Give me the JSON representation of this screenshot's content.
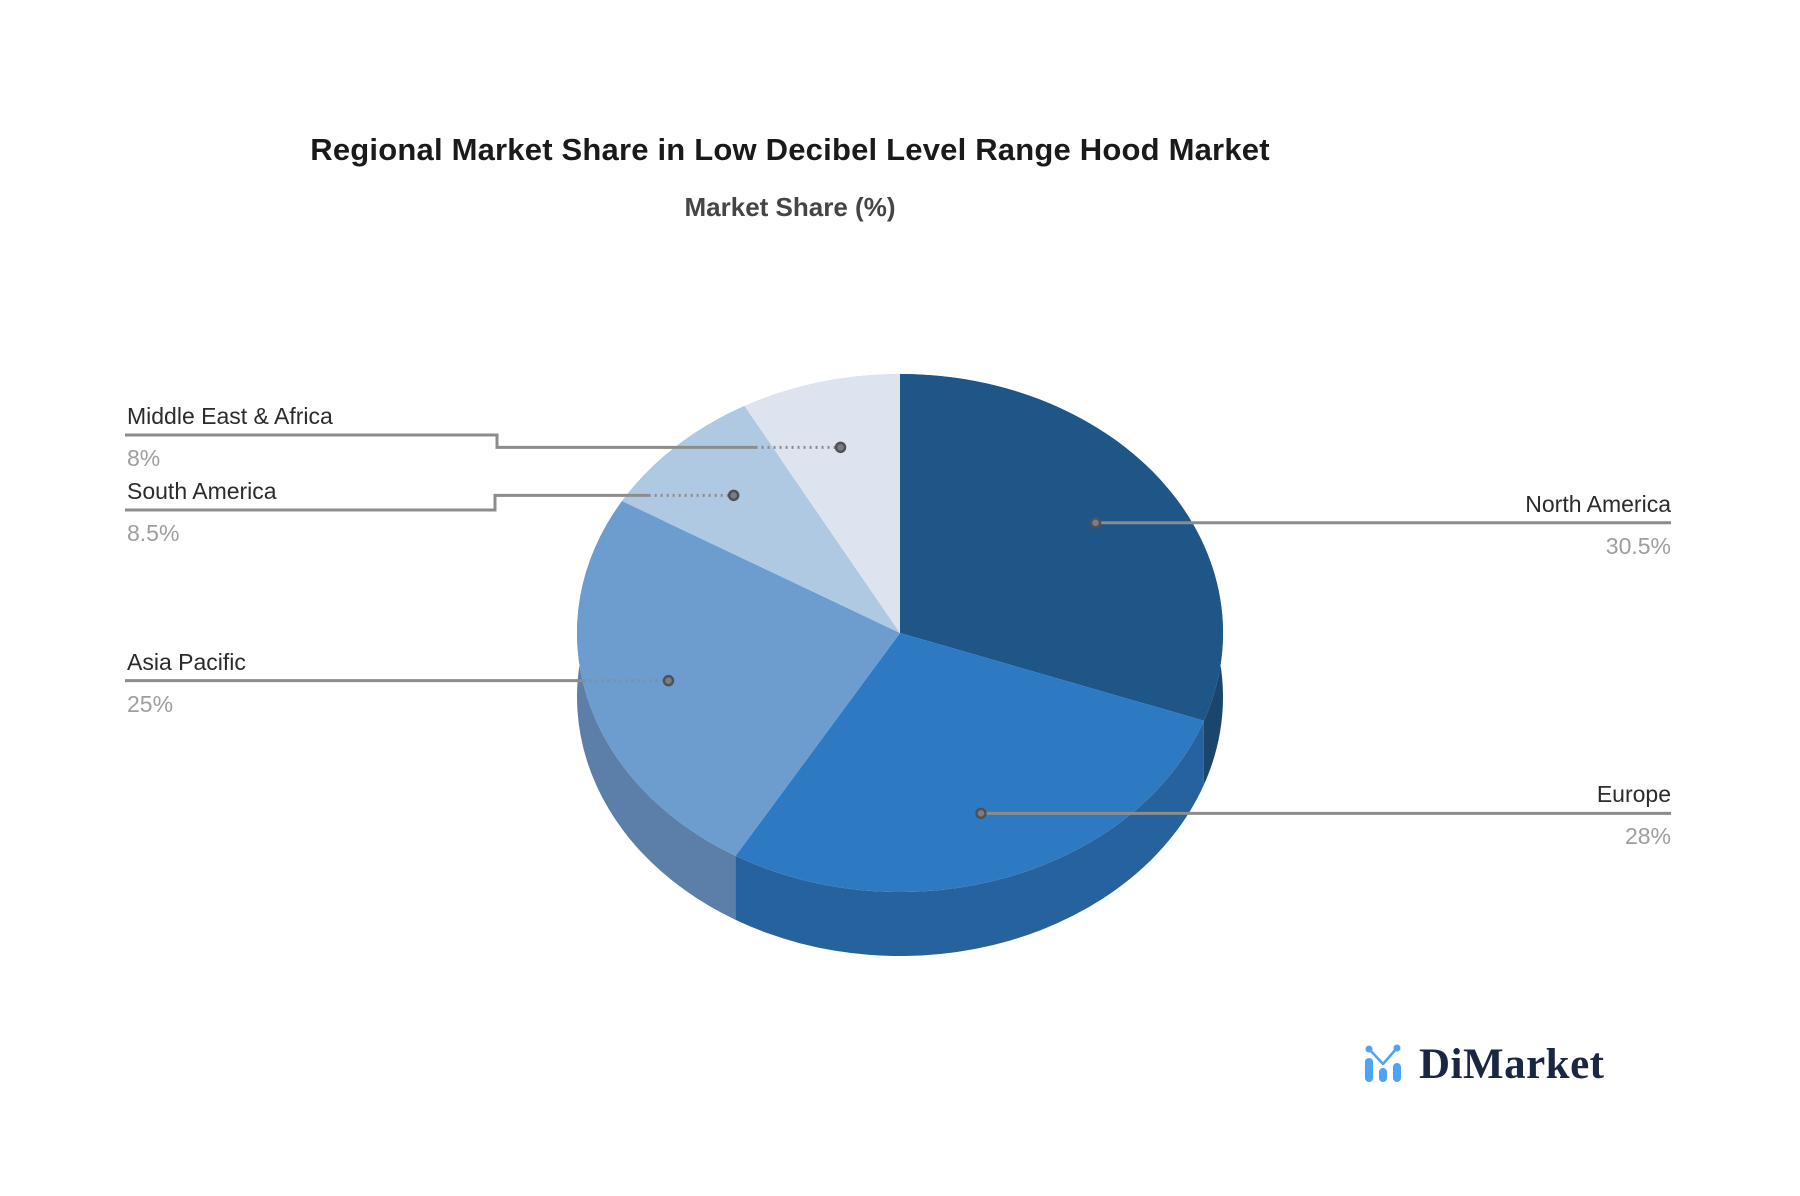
{
  "chart_data": {
    "type": "pie",
    "title": "Regional Market Share in Low Decibel Level Range Hood Market",
    "subtitle": "Market Share (%)",
    "unit": "%",
    "categories": [
      "North America",
      "Europe",
      "Asia Pacific",
      "South America",
      "Middle East & Africa"
    ],
    "values": [
      30.5,
      28,
      25,
      8.5,
      8
    ],
    "labels": [
      "30.5%",
      "28%",
      "25%",
      "8.5%",
      "8%"
    ],
    "colors": [
      "#1E5688",
      "#2D7AC3",
      "#6D9CCF",
      "#AFC9E3",
      "#DDE4EF"
    ],
    "side_colors": [
      "#1A466E",
      "#26629D",
      "#5B7FA8",
      "#8FA9C7",
      "#B9C3D3"
    ],
    "style": "3d",
    "start_angle_deg": 0,
    "direction": "clockwise",
    "legend_position": "none",
    "label_layout": "callout-lines",
    "callout": {
      "line_color": "#8C8C8C",
      "name_color": "#2B2B2B",
      "value_color": "#9E9E9E",
      "dot_fill": "#7A7E84",
      "dot_ring": "#4E5257"
    }
  },
  "watermark": {
    "brand": "DiMarket",
    "icon": "bar-chart-line-logo-icon",
    "text_color": "#1A2642",
    "icon_color": "#4DA3F7"
  }
}
